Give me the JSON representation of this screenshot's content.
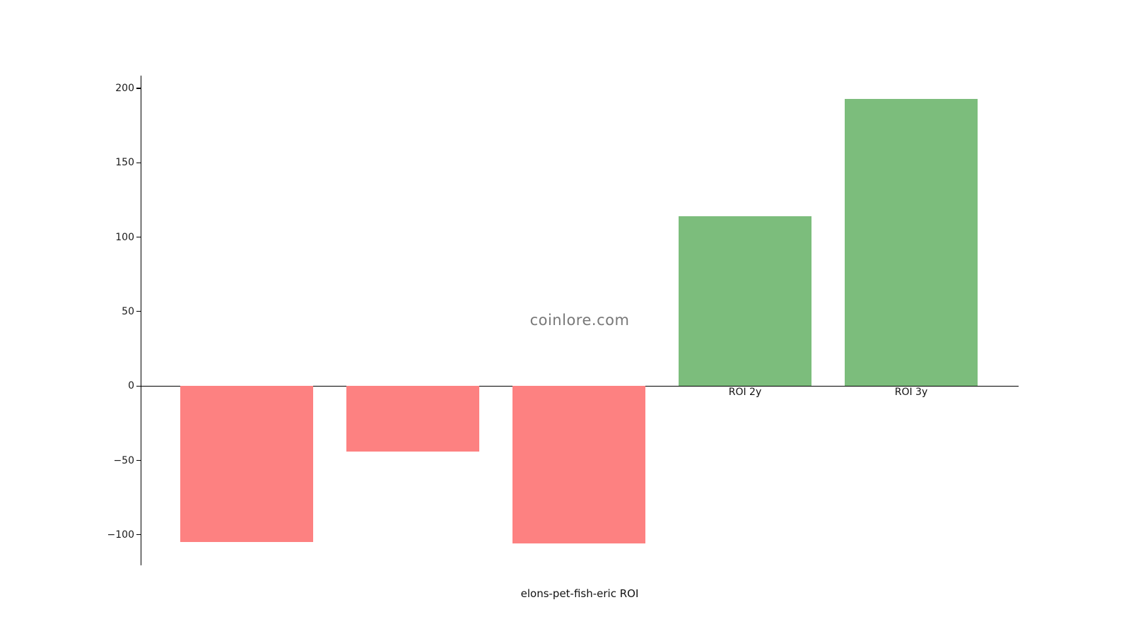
{
  "chart_data": {
    "type": "bar",
    "title": "",
    "xlabel": "elons-pet-fish-eric ROI",
    "ylabel": "",
    "watermark": "coinlore.com",
    "categories": [
      "",
      "",
      "",
      "ROI 2y",
      "ROI 3y"
    ],
    "values": [
      -105,
      -44,
      -106,
      114,
      193
    ],
    "bar_colors": [
      "#fd8181",
      "#fd8181",
      "#fd8181",
      "#7cbd7c",
      "#7cbd7c"
    ],
    "yticks": [
      200,
      150,
      100,
      50,
      0,
      -50,
      -100
    ],
    "ytick_labels": [
      "200",
      "150",
      "100",
      "50",
      "0",
      "−50",
      "−100"
    ],
    "ylim": [
      -120.5,
      208.5
    ],
    "grid": false,
    "legend": null,
    "baseline": 0,
    "colors": {
      "negative_bar": "#fd8181",
      "positive_bar": "#7cbd7c",
      "axis_line": "#000000",
      "tick_text": "#1a1a1a",
      "watermark_text": "#787878"
    }
  }
}
